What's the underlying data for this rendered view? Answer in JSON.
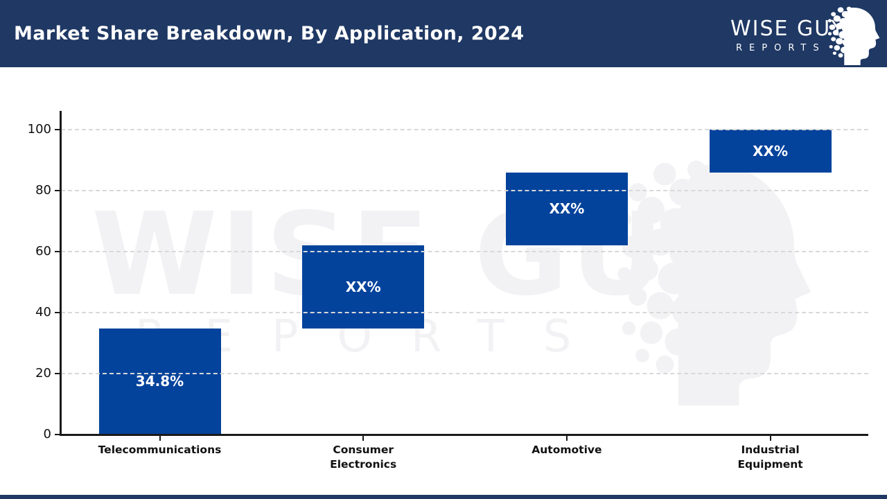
{
  "header": {
    "title": "Market Share Breakdown, By Application, 2024",
    "logo_line1": "WISE GUY",
    "logo_line2": "REPORTS"
  },
  "watermark": {
    "line1": "WISE GUY",
    "line2": "REPORTS"
  },
  "chart_data": {
    "type": "bar",
    "variant": "floating-segment-bars-waterfall-style",
    "title": "Market Share Breakdown, By Application, 2024",
    "categories": [
      "Telecommunications",
      "Consumer\nElectronics",
      "Automotive",
      "Industrial\nEquipment"
    ],
    "bars": [
      {
        "category": "Telecommunications",
        "start": 0,
        "end": 34.8,
        "label": "34.8%"
      },
      {
        "category": "Consumer Electronics",
        "start": 34.8,
        "end": 62,
        "label": "XX%"
      },
      {
        "category": "Automotive",
        "start": 62,
        "end": 86,
        "label": "XX%"
      },
      {
        "category": "Industrial Equipment",
        "start": 86,
        "end": 100,
        "label": "XX%"
      }
    ],
    "y_ticks": [
      0,
      20,
      40,
      60,
      80,
      100
    ],
    "ylim": [
      0,
      106
    ],
    "xlabel": "",
    "ylabel": "",
    "grid": "horizontal-dashed",
    "legend": "none",
    "colors": {
      "bar": "#04439c",
      "header_bg": "#1f3864",
      "gridline": "#d8d8d8",
      "axis": "#1a1a1a",
      "watermark": "#f2f2f4",
      "bar_label_text": "#ffffff",
      "title_text": "#ffffff"
    }
  }
}
